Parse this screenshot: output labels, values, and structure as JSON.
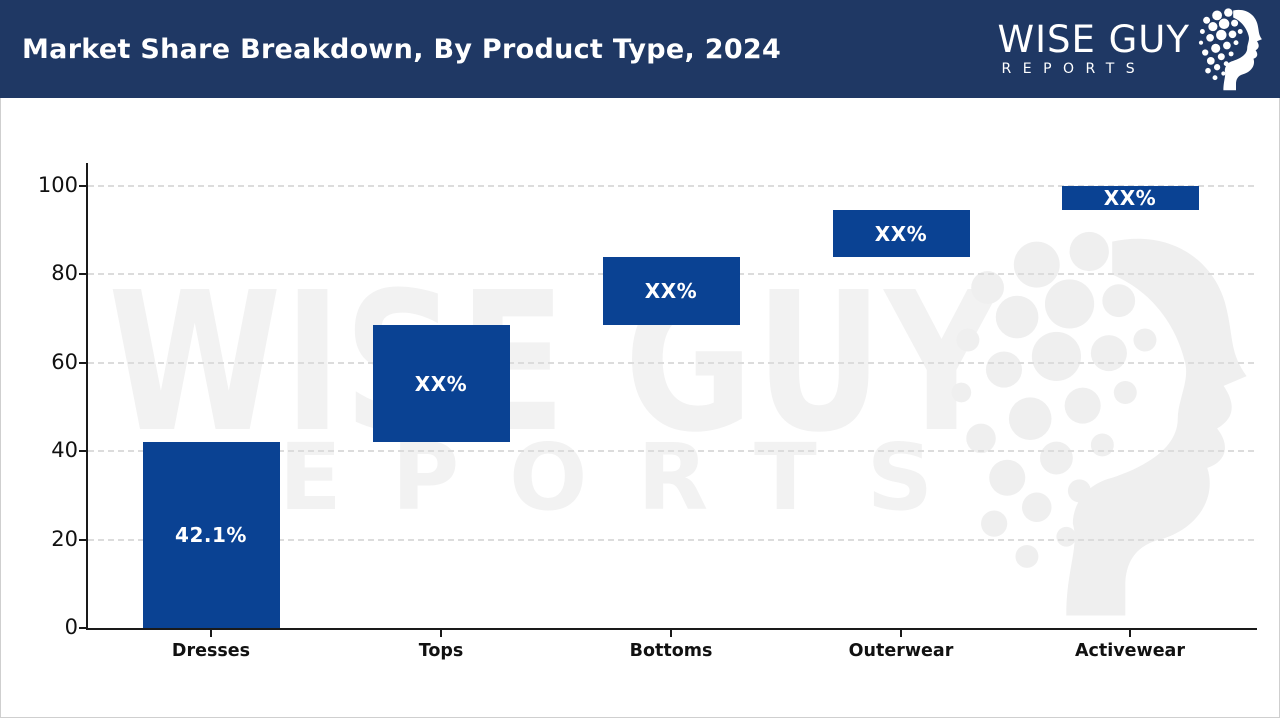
{
  "header": {
    "title": "Market Share Breakdown, By Product Type, 2024",
    "logo": {
      "line1": "WISE GUY",
      "line2": "REPORTS"
    }
  },
  "watermark": {
    "line1": "WISE GUY",
    "line2": "REPORTS"
  },
  "chart_data": {
    "type": "bar",
    "variant": "waterfall",
    "title": "Market Share Breakdown, By Product Type, 2024",
    "xlabel": "",
    "ylabel": "",
    "categories": [
      "Dresses",
      "Tops",
      "Bottoms",
      "Outerwear",
      "Activewear"
    ],
    "segments": [
      {
        "category": "Dresses",
        "start": 0,
        "end": 42.1,
        "delta": 42.1,
        "label": "42.1%"
      },
      {
        "category": "Tops",
        "start": 42.1,
        "end": 68.5,
        "delta": 26.4,
        "label": "XX%"
      },
      {
        "category": "Bottoms",
        "start": 68.5,
        "end": 84.0,
        "delta": 15.5,
        "label": "XX%"
      },
      {
        "category": "Outerwear",
        "start": 84.0,
        "end": 94.5,
        "delta": 10.5,
        "label": "XX%"
      },
      {
        "category": "Activewear",
        "start": 94.5,
        "end": 100.0,
        "delta": 5.5,
        "label": "XX%"
      }
    ],
    "ylim": [
      0,
      100
    ],
    "yticks": [
      0,
      20,
      40,
      60,
      80,
      100
    ],
    "grid": "horizontal-dashed",
    "legend": "none",
    "colors": {
      "bar": "#0A4293",
      "header_bg": "#1F3864",
      "grid": "#DCDCDC",
      "axis": "#1A1A1A",
      "bar_label_text": "#FFFFFF"
    }
  }
}
